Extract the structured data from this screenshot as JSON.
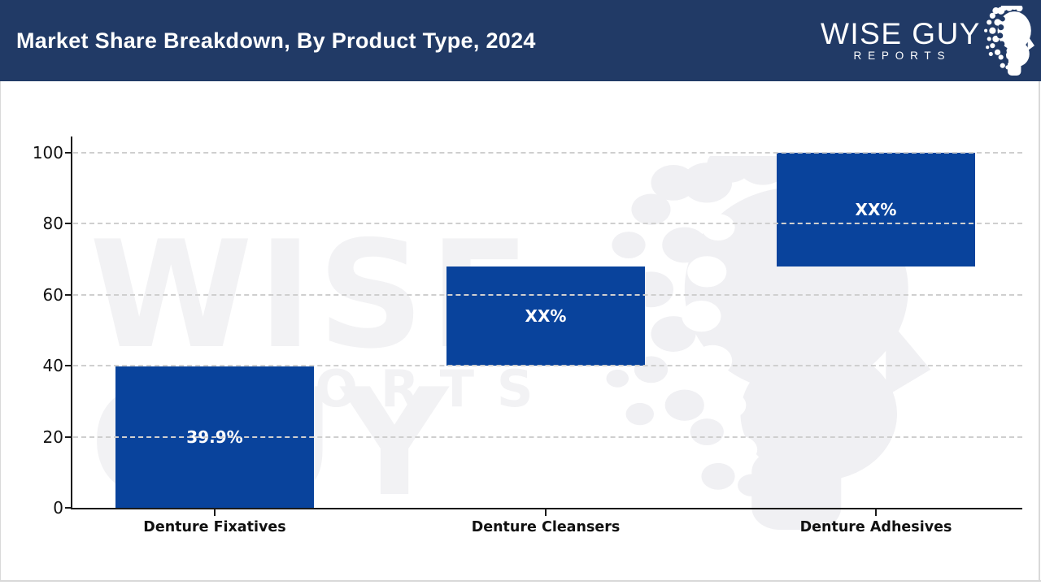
{
  "header": {
    "title": "Market Share Breakdown, By Product Type, 2024",
    "logo": {
      "line1": "WISE GUY",
      "line2": "REPORTS"
    }
  },
  "watermark": {
    "line1": "WISE GUY",
    "line2": "REPORTS"
  },
  "colors": {
    "header_background": "#213a66",
    "bar_blue": "#09439c",
    "gridline_gray": "#cfcfcf",
    "axis_black": "#1a1a1a",
    "value_label_white": "#ffffff",
    "watermark_gray": "#f2f2f4"
  },
  "chart_data": {
    "type": "bar",
    "subtype": "waterfall",
    "title": "Market Share Breakdown, By Product Type, 2024",
    "xlabel": "",
    "ylabel": "",
    "unit": "%",
    "ylim": [
      0,
      104
    ],
    "yticks": [
      0,
      20,
      40,
      60,
      80,
      100
    ],
    "grid": "horizontal-dashed",
    "legend": "none",
    "categories": [
      "Denture Fixatives",
      "Denture Cleansers",
      "Denture Adhesives"
    ],
    "bars": [
      {
        "category": "Denture Fixatives",
        "start": 0,
        "end": 39.9,
        "label": "39.9%"
      },
      {
        "category": "Denture Cleansers",
        "start": 40,
        "end": 68,
        "label": "XX%"
      },
      {
        "category": "Denture Adhesives",
        "start": 68,
        "end": 100,
        "label": "XX%"
      }
    ]
  }
}
